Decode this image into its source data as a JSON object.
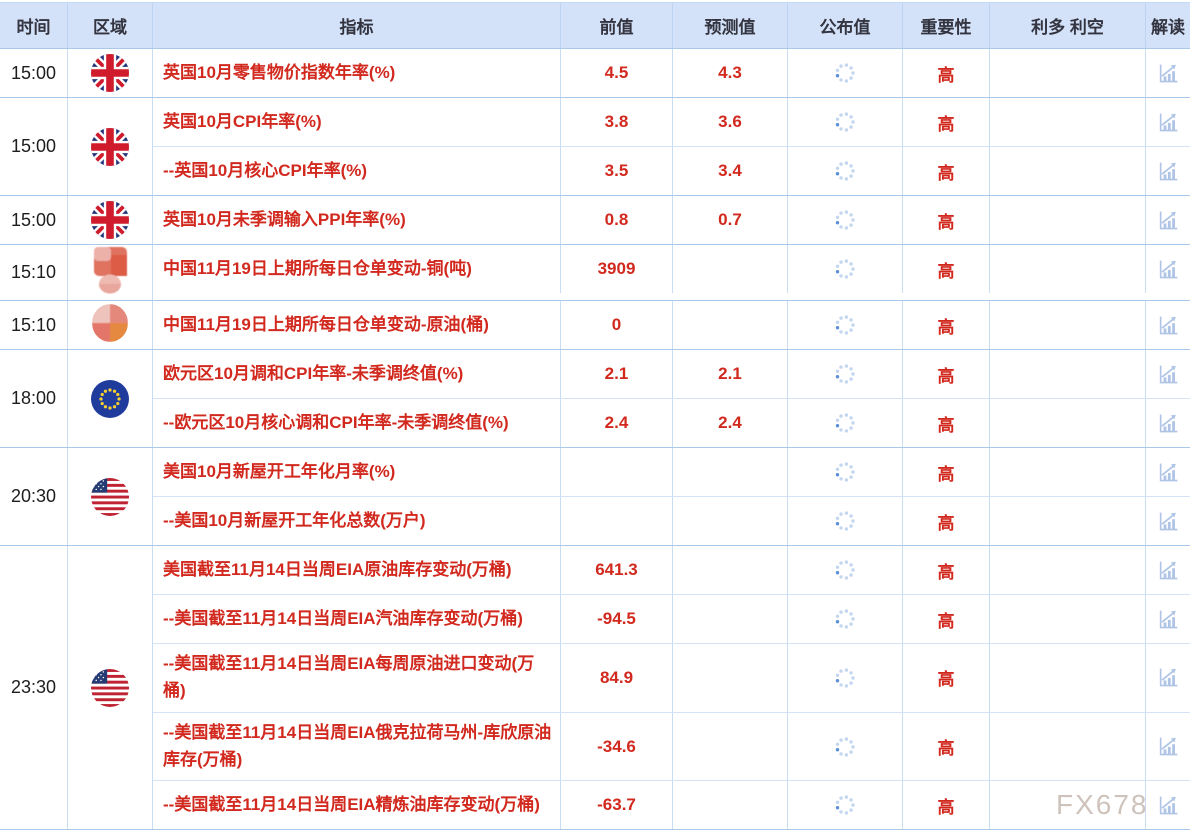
{
  "watermark": "FX678",
  "colors": {
    "header_bg": "#d3e2f8",
    "header_text": "#333440",
    "data_red": "#d2291f",
    "grid_border": "#aac8ea",
    "sub_border": "#d5e3f6",
    "icon_blue": "#b0c5e6",
    "spinner_dark_dot": "#5b8ed8",
    "watermark_gray": "#c9bdb5"
  },
  "icons": {
    "published_pending": "loading-spinner",
    "interpret": "bar-line-chart-arrow"
  },
  "table": {
    "columns": [
      {
        "key": "time",
        "label": "时间"
      },
      {
        "key": "region",
        "label": "区域"
      },
      {
        "key": "indicator",
        "label": "指标"
      },
      {
        "key": "previous",
        "label": "前值"
      },
      {
        "key": "forecast",
        "label": "预测值"
      },
      {
        "key": "published",
        "label": "公布值"
      },
      {
        "key": "importance",
        "label": "重要性"
      },
      {
        "key": "bull-bear",
        "label": "利多 利空"
      },
      {
        "key": "interpret",
        "label": "解读"
      }
    ],
    "groups": [
      {
        "time": "15:00",
        "flag": "gb",
        "rows": [
          {
            "indicator": "英国10月零售物价指数年率(%)",
            "previous": "4.5",
            "forecast": "4.3",
            "importance": "高"
          }
        ]
      },
      {
        "time": "15:00",
        "flag": "gb",
        "rows": [
          {
            "indicator": "英国10月CPI年率(%)",
            "previous": "3.8",
            "forecast": "3.6",
            "importance": "高"
          },
          {
            "indicator": "--英国10月核心CPI年率(%)",
            "previous": "3.5",
            "forecast": "3.4",
            "importance": "高"
          }
        ]
      },
      {
        "time": "15:00",
        "flag": "gb",
        "rows": [
          {
            "indicator": "英国10月未季调输入PPI年率(%)",
            "previous": "0.8",
            "forecast": "0.7",
            "importance": "高"
          }
        ]
      },
      {
        "time": "15:10",
        "flag": "cn-censored-a",
        "rows": [
          {
            "indicator": "中国11月19日上期所每日仓单变动-铜(吨)",
            "previous": "3909",
            "forecast": "",
            "importance": "高"
          }
        ]
      },
      {
        "time": "15:10",
        "flag": "cn-censored-b",
        "rows": [
          {
            "indicator": "中国11月19日上期所每日仓单变动-原油(桶)",
            "previous": "0",
            "forecast": "",
            "importance": "高"
          }
        ]
      },
      {
        "time": "18:00",
        "flag": "eu",
        "rows": [
          {
            "indicator": "欧元区10月调和CPI年率-未季调终值(%)",
            "previous": "2.1",
            "forecast": "2.1",
            "importance": "高"
          },
          {
            "indicator": "--欧元区10月核心调和CPI年率-未季调终值(%)",
            "previous": "2.4",
            "forecast": "2.4",
            "importance": "高"
          }
        ]
      },
      {
        "time": "20:30",
        "flag": "us",
        "rows": [
          {
            "indicator": "美国10月新屋开工年化月率(%)",
            "previous": "",
            "forecast": "",
            "importance": "高"
          },
          {
            "indicator": "--美国10月新屋开工年化总数(万户)",
            "previous": "",
            "forecast": "",
            "importance": "高"
          }
        ]
      },
      {
        "time": "23:30",
        "flag": "us",
        "rows": [
          {
            "indicator": "美国截至11月14日当周EIA原油库存变动(万桶)",
            "previous": "641.3",
            "forecast": "",
            "importance": "高"
          },
          {
            "indicator": "--美国截至11月14日当周EIA汽油库存变动(万桶)",
            "previous": "-94.5",
            "forecast": "",
            "importance": "高"
          },
          {
            "indicator": "--美国截至11月14日当周EIA每周原油进口变动(万桶)",
            "previous": "84.9",
            "forecast": "",
            "importance": "高"
          },
          {
            "indicator": "--美国截至11月14日当周EIA俄克拉荷马州-库欣原油库存(万桶)",
            "previous": "-34.6",
            "forecast": "",
            "importance": "高"
          },
          {
            "indicator": "--美国截至11月14日当周EIA精炼油库存变动(万桶)",
            "previous": "-63.7",
            "forecast": "",
            "importance": "高"
          }
        ]
      }
    ]
  }
}
